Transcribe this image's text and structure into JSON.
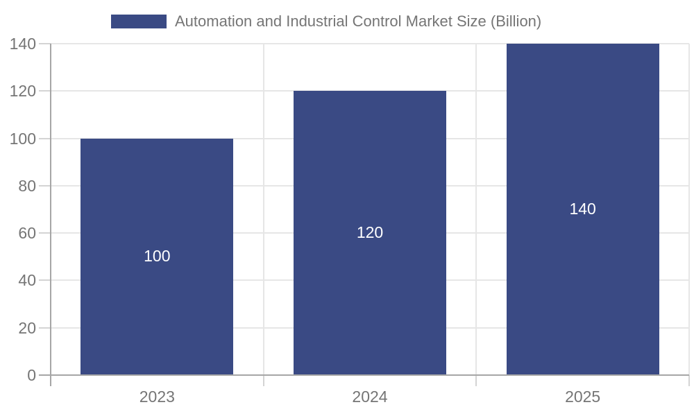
{
  "chart_data": {
    "type": "bar",
    "title": "Automation and Industrial Control Market Size (Billion)",
    "categories": [
      "2023",
      "2024",
      "2025"
    ],
    "values": [
      100,
      120,
      140
    ],
    "bar_labels": [
      "100",
      "120",
      "140"
    ],
    "xlabel": "",
    "ylabel": "",
    "ylim": [
      0,
      140
    ],
    "yticks": [
      0,
      20,
      40,
      60,
      80,
      100,
      120,
      140
    ],
    "grid": true,
    "legend_position": "top-center",
    "colors": {
      "bar": "#3A4A84",
      "bar_label": "#ffffff",
      "tick_label": "#757575",
      "title": "#757575",
      "gridline": "#e6e6e6",
      "axis": "#a6a6a6",
      "tick_mark": "#d4d4d4",
      "background": "#ffffff"
    }
  }
}
